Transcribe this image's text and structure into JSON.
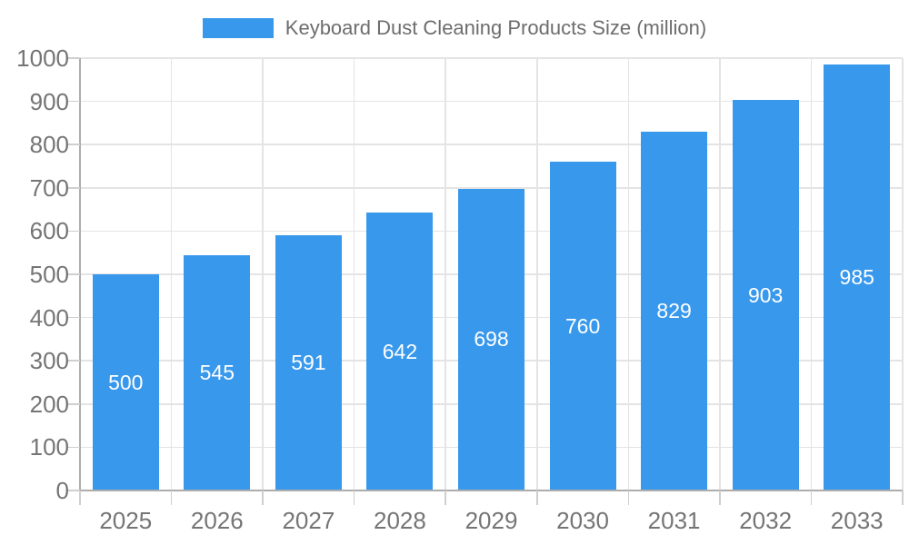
{
  "legend": {
    "label": "Keyboard Dust Cleaning Products Size (million)"
  },
  "chart_data": {
    "type": "bar",
    "title": "Keyboard Dust Cleaning Products Size (million)",
    "categories": [
      "2025",
      "2026",
      "2027",
      "2028",
      "2029",
      "2030",
      "2031",
      "2032",
      "2033"
    ],
    "series": [
      {
        "name": "Keyboard Dust Cleaning Products Size (million)",
        "values": [
          500,
          545,
          591,
          642,
          698,
          760,
          829,
          903,
          985
        ]
      }
    ],
    "xlabel": "",
    "ylabel": "",
    "ylim": [
      0,
      1000
    ],
    "ytick_step": 100,
    "ytick_labels": [
      "0",
      "100",
      "200",
      "300",
      "400",
      "500",
      "600",
      "700",
      "800",
      "900",
      "1000"
    ],
    "grid": true,
    "legend_position": "top-center",
    "value_labels": "inside-center",
    "bar_color": "#3898EC",
    "value_label_color": "#FFFFFF",
    "axis_text_color": "#757575",
    "title_text_color": "#6D6D6D",
    "gridline_color": "#E4E4E4",
    "axis_line_color": "#ADADAD",
    "background_color": "#FFFFFF"
  }
}
